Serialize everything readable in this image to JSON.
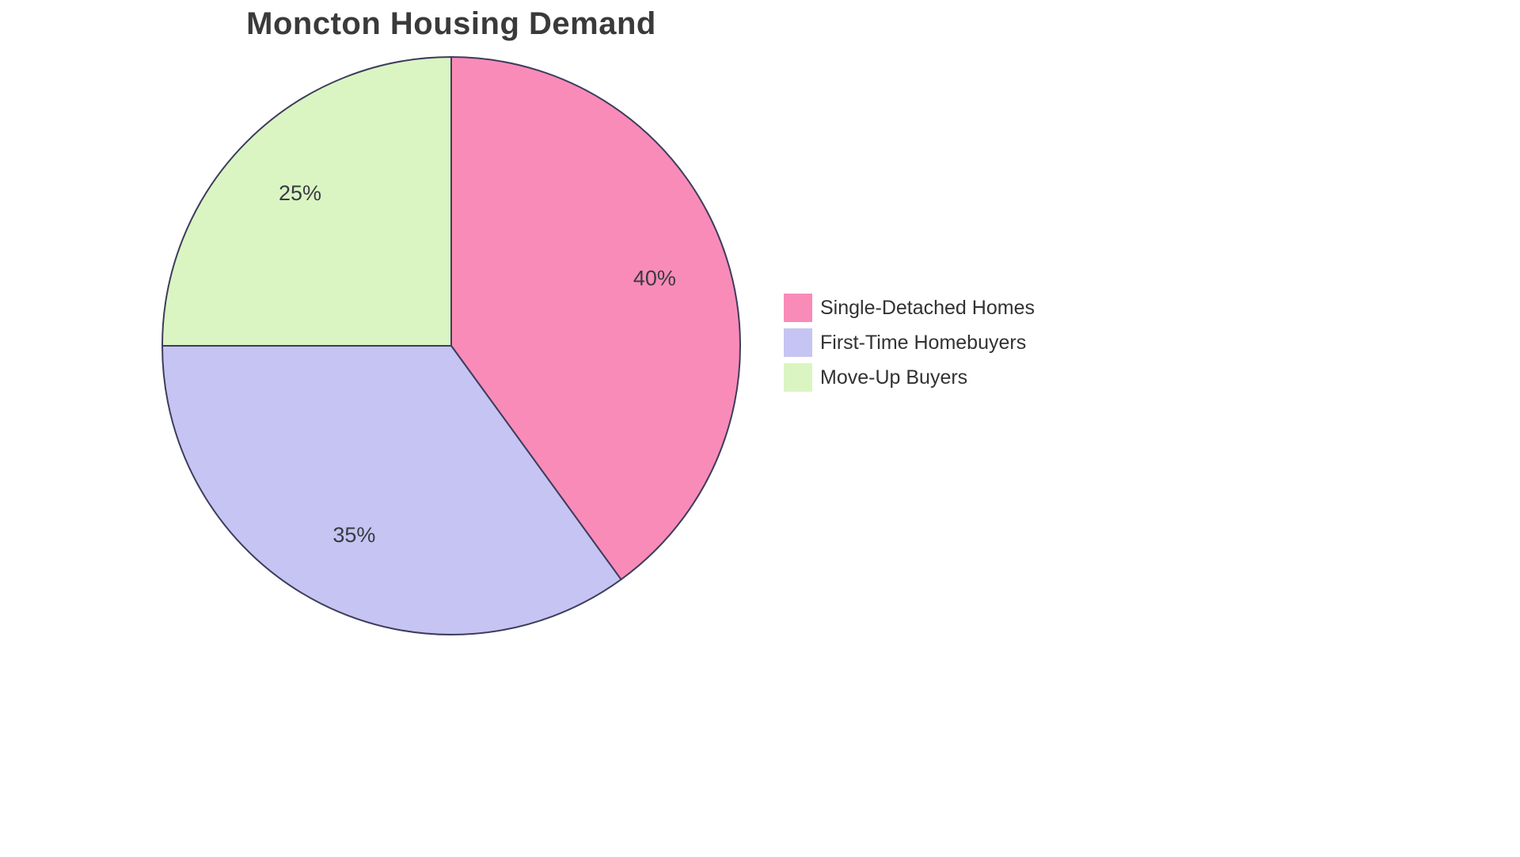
{
  "chart_data": {
    "type": "pie",
    "title": "Moncton Housing Demand",
    "slices": [
      {
        "label": "Single-Detached Homes",
        "value": 40,
        "percent_label": "40%",
        "color": "#F98BB9"
      },
      {
        "label": "First-Time Homebuyers",
        "value": 35,
        "percent_label": "35%",
        "color": "#C6C4F2"
      },
      {
        "label": "Move-Up Buyers",
        "value": 25,
        "percent_label": "25%",
        "color": "#DAF5C2"
      }
    ],
    "start_angle_deg": -90,
    "direction": "clockwise",
    "stroke_color": "#3D3D5C",
    "stroke_width": 2,
    "label_color": "#3a3a44",
    "legend_position": "right",
    "center": [
      570,
      437
    ],
    "radius": 365,
    "label_radius_ratio": 0.74
  }
}
